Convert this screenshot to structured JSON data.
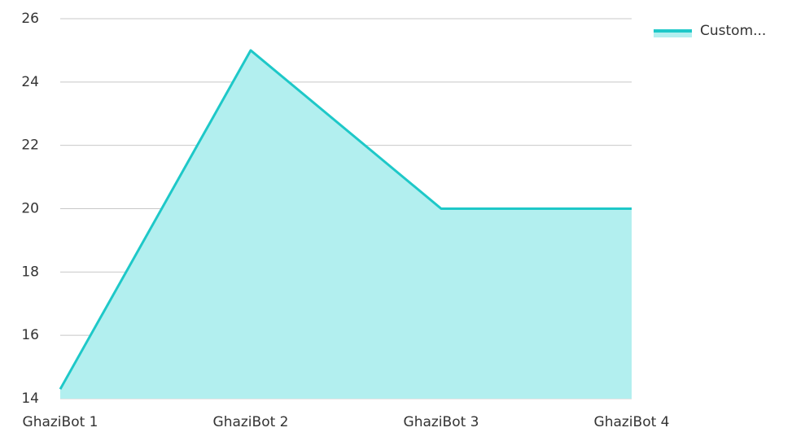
{
  "chart_data": {
    "type": "area",
    "categories": [
      "GhaziBot 1",
      "GhaziBot 2",
      "GhaziBot 3",
      "GhaziBot 4"
    ],
    "series": [
      {
        "name": "Custom...",
        "color": "#1ec8c8",
        "fill": "#b2efef",
        "values": [
          14.3,
          25,
          20,
          20
        ]
      }
    ],
    "ylim": [
      14,
      26
    ],
    "yticks": [
      14,
      16,
      18,
      20,
      22,
      24,
      26
    ],
    "grid": true,
    "legend": "top-right"
  }
}
